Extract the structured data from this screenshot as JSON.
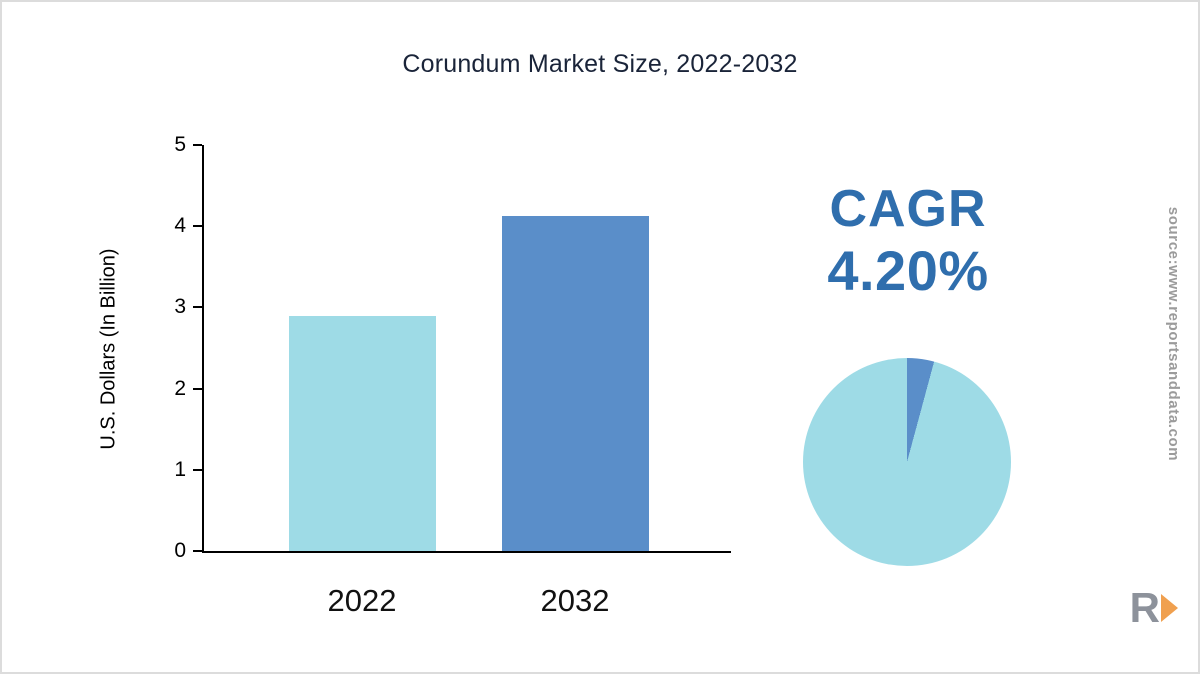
{
  "title": "Corundum Market Size, 2022-2032",
  "chart_data": [
    {
      "type": "bar",
      "title": "Corundum Market Size, 2022-2032",
      "categories": [
        "2022",
        "2032"
      ],
      "values": [
        2.9,
        4.13
      ],
      "xlabel": "",
      "ylabel": "U.S. Dollars (In Billion)",
      "ylim": [
        0,
        5
      ],
      "yticks": [
        0,
        1,
        2,
        3,
        4,
        5
      ],
      "bar_colors": [
        "#9edbe6",
        "#5a8ec9"
      ],
      "grid": false,
      "legend": false
    },
    {
      "type": "pie",
      "slices": [
        {
          "value": 4.2,
          "color": "#5a8ec9"
        },
        {
          "value": 95.8,
          "color": "#9edbe6"
        }
      ],
      "start_angle_deg": 0,
      "annotation": "CAGR 4.20%"
    }
  ],
  "cagr": {
    "label": "CAGR",
    "value": "4.20%"
  },
  "source": {
    "text": "source:www.reportsanddata.com"
  },
  "logo": {
    "letter": "R"
  },
  "colors": {
    "accent_blue": "#2f6ead",
    "bar_light": "#9edbe6",
    "bar_dark": "#5a8ec9",
    "axis": "#000000",
    "source_gray": "#9b9b9b",
    "logo_gray": "#8d929b",
    "logo_orange": "#f0a04f"
  }
}
